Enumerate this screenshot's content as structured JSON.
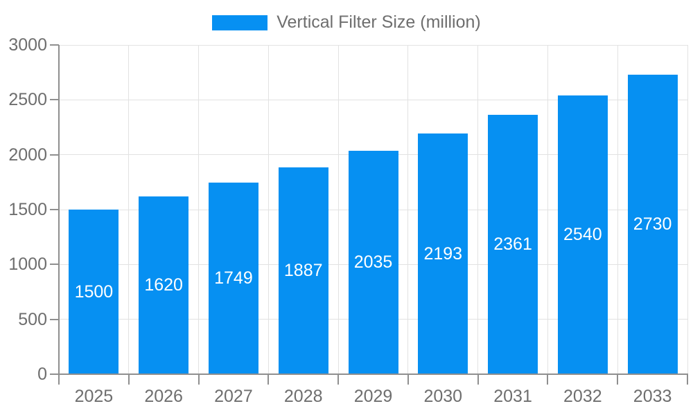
{
  "legend": {
    "label": "Vertical Filter Size (million)"
  },
  "colors": {
    "bar": "#0690F2",
    "grid": "#e2e2e2",
    "axis": "#8f8f8f",
    "tick_text": "#6e6e6e",
    "value_label": "#ffffff",
    "background": "#ffffff"
  },
  "chart_data": {
    "type": "bar",
    "title": "",
    "xlabel": "",
    "ylabel": "",
    "categories": [
      "2025",
      "2026",
      "2027",
      "2028",
      "2029",
      "2030",
      "2031",
      "2032",
      "2033"
    ],
    "series": [
      {
        "name": "Vertical Filter Size (million)",
        "values": [
          1500,
          1620,
          1749,
          1887,
          2035,
          2193,
          2361,
          2540,
          2730
        ]
      }
    ],
    "value_labels_shown": true,
    "value_label_position": "center-of-bar",
    "ylim": [
      0,
      3000
    ],
    "yticks": [
      0,
      500,
      1000,
      1500,
      2000,
      2500,
      3000
    ],
    "grid": true,
    "legend_position": "top-center"
  }
}
